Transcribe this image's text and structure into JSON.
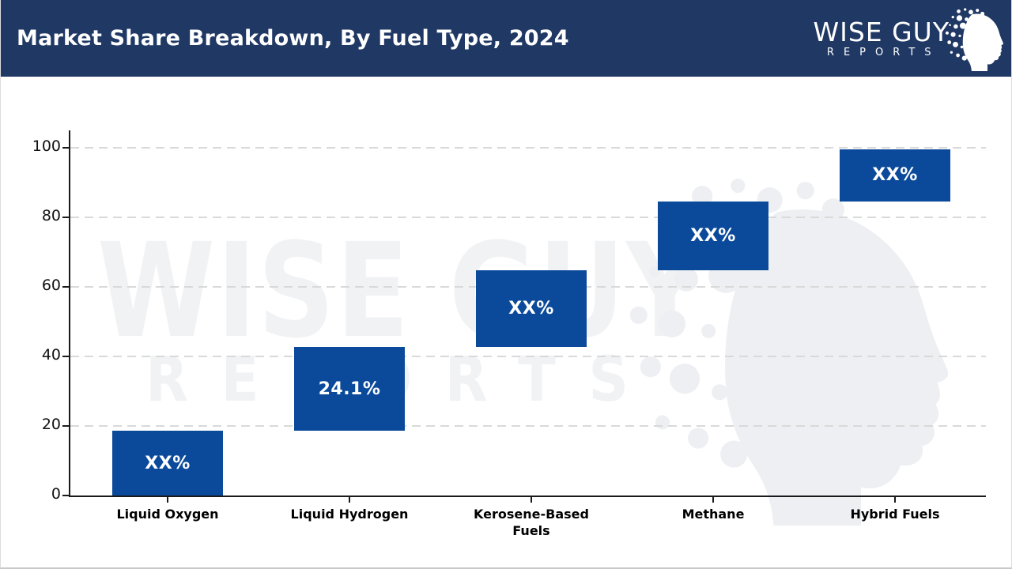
{
  "header": {
    "title": "Market Share Breakdown, By Fuel Type, 2024",
    "bg_color": "#203864",
    "logo_line1": "WISE GUY",
    "logo_line2": "REPORTS"
  },
  "watermark": {
    "line1": "WISE GUY",
    "line2": "REPORTS"
  },
  "chart_data": {
    "type": "bar",
    "variant": "waterfall",
    "title": "Market Share Breakdown, By Fuel Type, 2024",
    "categories": [
      "Liquid Oxygen",
      "Liquid Hydrogen",
      "Kerosene-Based Fuels",
      "Methane",
      "Hybrid Fuels"
    ],
    "segments": [
      {
        "category": "Liquid Oxygen",
        "start": 0,
        "end": 18.6,
        "label": "XX%"
      },
      {
        "category": "Liquid Hydrogen",
        "start": 18.6,
        "end": 42.7,
        "label": "24.1%"
      },
      {
        "category": "Kerosene-Based Fuels",
        "start": 42.7,
        "end": 64.8,
        "label": "XX%"
      },
      {
        "category": "Methane",
        "start": 64.8,
        "end": 84.5,
        "label": "XX%"
      },
      {
        "category": "Hybrid Fuels",
        "start": 84.5,
        "end": 99.6,
        "label": "XX%"
      }
    ],
    "yticks": [
      0,
      20,
      40,
      60,
      80,
      100
    ],
    "ylim": [
      0,
      105
    ],
    "xlabel": "",
    "ylabel": "",
    "bar_color": "#0b4a9b",
    "grid": {
      "axis": "y",
      "style": "dashed",
      "color": "#d9d9d9"
    },
    "legend": null
  }
}
